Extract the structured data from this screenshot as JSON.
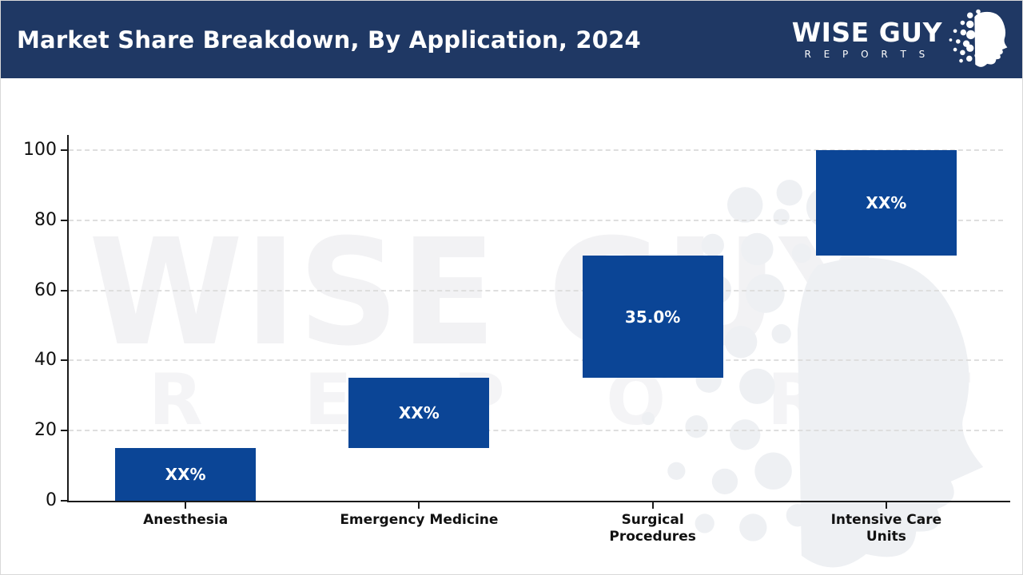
{
  "header": {
    "title": "Market Share Breakdown, By Application, 2024",
    "logo_line1": "WISE GUY",
    "logo_line2": "R E P O R T S"
  },
  "watermark": {
    "line1": "WISE GUY",
    "line2": "R E P O R T S"
  },
  "colors": {
    "header_bg": "#1f3864",
    "bar": "#0b4596",
    "grid": "#dedede",
    "axis": "#1a1a1a",
    "title_text": "#ffffff",
    "bar_label_text": "#ffffff",
    "watermark_text": "#f2f2f4",
    "watermark_face": "#eef0f3"
  },
  "chart_data": {
    "type": "bar",
    "subtype": "waterfall-floating-bars",
    "title": "Market Share Breakdown, By Application, 2024",
    "xlabel": "",
    "ylabel": "",
    "ylim": [
      0,
      100
    ],
    "y_ticks": [
      0,
      20,
      40,
      60,
      80,
      100
    ],
    "grid": "horizontal dashed",
    "legend": "none",
    "categories": [
      "Anesthesia",
      "Emergency Medicine",
      "Surgical Procedures",
      "Intensive Care Units"
    ],
    "bars": [
      {
        "category": "Anesthesia",
        "start": 0,
        "end": 15,
        "value": 15,
        "label": "XX%"
      },
      {
        "category": "Emergency Medicine",
        "start": 15,
        "end": 35,
        "value": 20,
        "label": "XX%"
      },
      {
        "category": "Surgical Procedures",
        "start": 35,
        "end": 70,
        "value": 35,
        "label": "35.0%"
      },
      {
        "category": "Intensive Care Units",
        "start": 70,
        "end": 100,
        "value": 30,
        "label": "XX%"
      }
    ],
    "x_tick_labels": [
      [
        "Anesthesia"
      ],
      [
        "Emergency Medicine"
      ],
      [
        "Surgical",
        "Procedures"
      ],
      [
        "Intensive Care",
        "Units"
      ]
    ]
  }
}
